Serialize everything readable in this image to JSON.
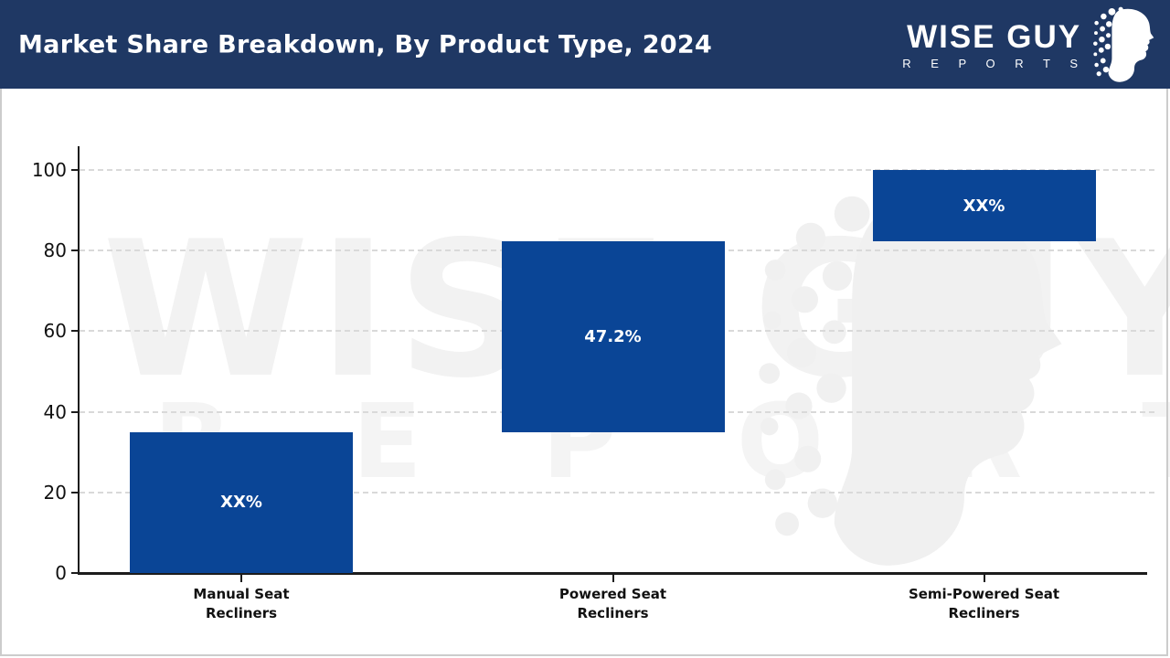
{
  "header": {
    "title": "Market Share Breakdown, By Product Type, 2024",
    "logo": {
      "primary": "WISE GUY",
      "secondary": "R E P O R T S"
    }
  },
  "watermark": {
    "primary": "WISE GUY",
    "secondary": "R E P O R T S"
  },
  "colors": {
    "header_bg": "#1f3864",
    "bar": "#0a4596",
    "bar_label": "#ffffff",
    "grid": "#d9d9d9",
    "axis": "#1c1c1c",
    "watermark": "#f0f0f0"
  },
  "chart_data": {
    "type": "bar",
    "subtype": "stacked_waterfall_percentage",
    "title": "Market Share Breakdown, By Product Type, 2024",
    "categories": [
      "Manual Seat Recliners",
      "Powered Seat Recliners",
      "Semi-Powered Seat Recliners"
    ],
    "categories_lines": [
      [
        "Manual Seat",
        "Recliners"
      ],
      [
        "Powered Seat",
        "Recliners"
      ],
      [
        "Semi-Powered Seat",
        "Recliners"
      ]
    ],
    "segments": [
      {
        "label": "XX%",
        "start": 0,
        "end": 35,
        "height_est": 35.0
      },
      {
        "label": "47.2%",
        "start": 35,
        "end": 82.2,
        "height_est": 47.2
      },
      {
        "label": "XX%",
        "start": 82.2,
        "end": 100,
        "height_est": 17.8
      }
    ],
    "ylim": [
      0,
      100
    ],
    "yticks": [
      0,
      20,
      40,
      60,
      80,
      100
    ],
    "xlabel": "",
    "ylabel": "",
    "grid": "horizontal-dashed",
    "legend": "none"
  }
}
